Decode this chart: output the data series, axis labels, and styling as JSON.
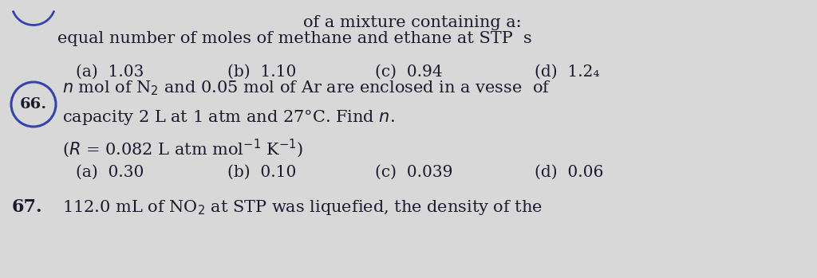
{
  "background_color": "#d8d8d8",
  "top_partial": "of a mixture containing a:",
  "top_main": "equal number of moles of methane and ethane at STP  s",
  "q65_options": [
    "(a)  1.03",
    "(b)  1.10",
    "(c)  0.94",
    "(d)  1.2₄"
  ],
  "q66_number": "66.",
  "q66_line1": "$n$ mol of N$_2$ and 0.05 mol of Ar are enclosed in a vesse  of",
  "q66_line2": "capacity 2 L at 1 atm and 27°C. Find $n$.",
  "q66_line3": "($R$ = 0.082 L atm mol$^{-1}$ K$^{-1}$)",
  "q66_options": [
    "(a)  0.30",
    "(b)  0.10",
    "(c)  0.039",
    "(d)  0.06"
  ],
  "q67_number": "67.",
  "q67_text": "112.0 mL of NO$_2$ at STP was liquefied, the density of the",
  "text_color": "#1a1a2e",
  "circle_color": "#3344aa",
  "font_size_main": 15,
  "font_size_options": 14.5
}
